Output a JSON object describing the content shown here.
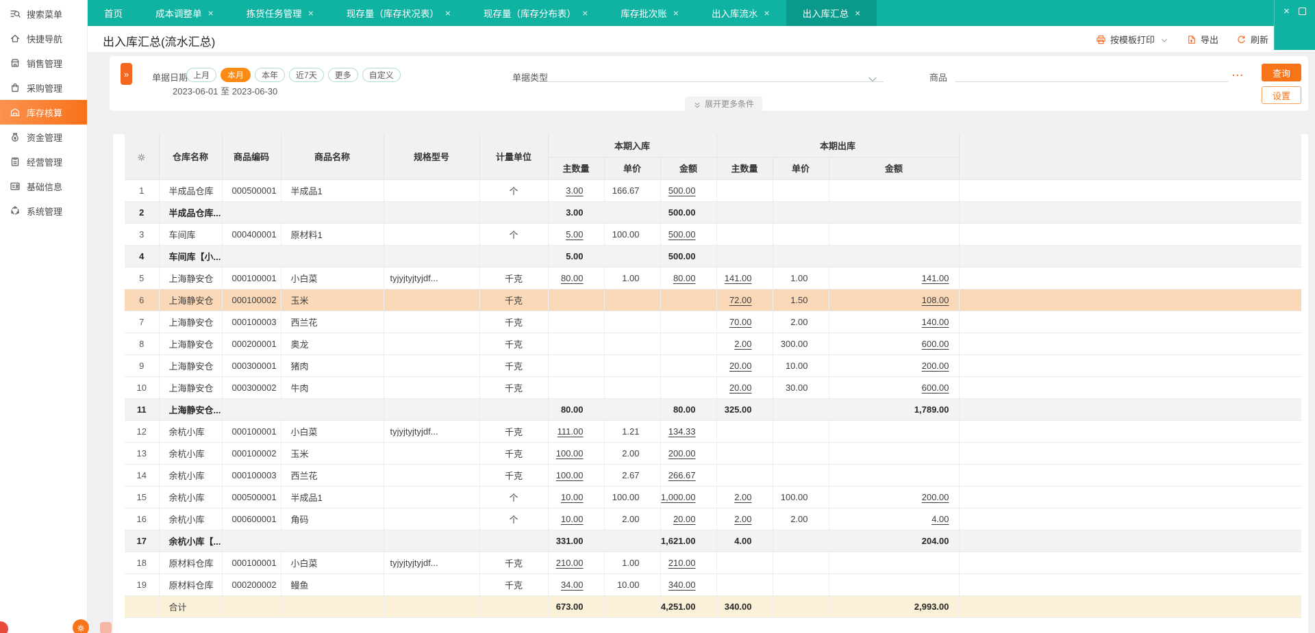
{
  "colors": {
    "teal": "#10b2a2",
    "teal_active_tab": "#0a9a8b",
    "orange": "#f97418",
    "pill_active": "#fa8c16",
    "row_selected": "#fad8b8",
    "row_subtotal": "#f2f3f5",
    "row_total": "#fbf0d8"
  },
  "sidebar": {
    "items": [
      {
        "id": "search-menu",
        "icon": "search-menu",
        "label": "搜索菜单",
        "active": false
      },
      {
        "id": "quick-nav",
        "icon": "home",
        "label": "快捷导航",
        "active": false
      },
      {
        "id": "sales",
        "icon": "shop",
        "label": "销售管理",
        "active": false
      },
      {
        "id": "purchase",
        "icon": "bag",
        "label": "采购管理",
        "active": false
      },
      {
        "id": "inventory-accounting",
        "icon": "warehouse",
        "label": "库存核算",
        "active": true
      },
      {
        "id": "funds",
        "icon": "money",
        "label": "资金管理",
        "active": false
      },
      {
        "id": "operations",
        "icon": "clipboard",
        "label": "经营管理",
        "active": false
      },
      {
        "id": "base-info",
        "icon": "id-card",
        "label": "基础信息",
        "active": false
      },
      {
        "id": "system",
        "icon": "system",
        "label": "系统管理",
        "active": false
      }
    ]
  },
  "tabbar": {
    "tabs": [
      {
        "label": "首页",
        "closable": false,
        "active": false
      },
      {
        "label": "成本调整单",
        "closable": true,
        "active": false
      },
      {
        "label": "拣货任务管理",
        "closable": true,
        "active": false
      },
      {
        "label": "现存量（库存状况表）",
        "closable": true,
        "active": false
      },
      {
        "label": "现存量（库存分布表）",
        "closable": true,
        "active": false
      },
      {
        "label": "库存批次账",
        "closable": true,
        "active": false
      },
      {
        "label": "出入库流水",
        "closable": true,
        "active": false
      },
      {
        "label": "出入库汇总",
        "closable": true,
        "active": true
      }
    ],
    "close_symbol": "×"
  },
  "page": {
    "title": "出入库汇总(流水汇总)",
    "toolbar": {
      "print": "按模板打印",
      "export": "导出",
      "refresh": "刷新"
    }
  },
  "filters": {
    "doc_date": {
      "label": "单据日期",
      "options": [
        "上月",
        "本月",
        "本年",
        "近7天",
        "更多",
        "自定义"
      ],
      "active": "本月",
      "range": "2023-06-01 至 2023-06-30"
    },
    "doc_type": {
      "label": "单据类型",
      "value": ""
    },
    "product": {
      "label": "商品",
      "value": "",
      "more": "..."
    },
    "search": "查询",
    "settings": "设置",
    "expand_more": "展开更多条件"
  },
  "table": {
    "columns": [
      "仓库名称",
      "商品编码",
      "商品名称",
      "规格型号",
      "计量单位"
    ],
    "group_in": "本期入库",
    "group_out": "本期出库",
    "sub_columns": [
      "主数量",
      "单价",
      "金额"
    ],
    "rows": [
      [
        "1",
        "半成品仓库",
        "000500001",
        "半成品1",
        "",
        "个",
        "3.00",
        "166.67",
        "500.00",
        "",
        "",
        "",
        "data"
      ],
      [
        "2",
        "半成品仓库...",
        "",
        "",
        "",
        "",
        "3.00",
        "",
        "500.00",
        "",
        "",
        "",
        "subtotal"
      ],
      [
        "3",
        "车间库",
        "000400001",
        "原材料1",
        "",
        "个",
        "5.00",
        "100.00",
        "500.00",
        "",
        "",
        "",
        "data"
      ],
      [
        "4",
        "车间库【小...",
        "",
        "",
        "",
        "",
        "5.00",
        "",
        "500.00",
        "",
        "",
        "",
        "subtotal"
      ],
      [
        "5",
        "上海静安仓",
        "000100001",
        "小白菜",
        "tyjyjtyjtyjdf...",
        "千克",
        "80.00",
        "1.00",
        "80.00",
        "141.00",
        "1.00",
        "141.00",
        "data"
      ],
      [
        "6",
        "上海静安仓",
        "000100002",
        "玉米",
        "",
        "千克",
        "",
        "",
        "",
        "72.00",
        "1.50",
        "108.00",
        "selected"
      ],
      [
        "7",
        "上海静安仓",
        "000100003",
        "西兰花",
        "",
        "千克",
        "",
        "",
        "",
        "70.00",
        "2.00",
        "140.00",
        "data"
      ],
      [
        "8",
        "上海静安仓",
        "000200001",
        "奥龙",
        "",
        "千克",
        "",
        "",
        "",
        "2.00",
        "300.00",
        "600.00",
        "data"
      ],
      [
        "9",
        "上海静安仓",
        "000300001",
        "猪肉",
        "",
        "千克",
        "",
        "",
        "",
        "20.00",
        "10.00",
        "200.00",
        "data"
      ],
      [
        "10",
        "上海静安仓",
        "000300002",
        "牛肉",
        "",
        "千克",
        "",
        "",
        "",
        "20.00",
        "30.00",
        "600.00",
        "data"
      ],
      [
        "11",
        "上海静安仓...",
        "",
        "",
        "",
        "",
        "80.00",
        "",
        "80.00",
        "325.00",
        "",
        "1,789.00",
        "subtotal"
      ],
      [
        "12",
        "余杭小库",
        "000100001",
        "小白菜",
        "tyjyjtyjtyjdf...",
        "千克",
        "111.00",
        "1.21",
        "134.33",
        "",
        "",
        "",
        "data"
      ],
      [
        "13",
        "余杭小库",
        "000100002",
        "玉米",
        "",
        "千克",
        "100.00",
        "2.00",
        "200.00",
        "",
        "",
        "",
        "data"
      ],
      [
        "14",
        "余杭小库",
        "000100003",
        "西兰花",
        "",
        "千克",
        "100.00",
        "2.67",
        "266.67",
        "",
        "",
        "",
        "data"
      ],
      [
        "15",
        "余杭小库",
        "000500001",
        "半成品1",
        "",
        "个",
        "10.00",
        "100.00",
        "1,000.00",
        "2.00",
        "100.00",
        "200.00",
        "data"
      ],
      [
        "16",
        "余杭小库",
        "000600001",
        "角码",
        "",
        "个",
        "10.00",
        "2.00",
        "20.00",
        "2.00",
        "2.00",
        "4.00",
        "data"
      ],
      [
        "17",
        "余杭小库【...",
        "",
        "",
        "",
        "",
        "331.00",
        "",
        "1,621.00",
        "4.00",
        "",
        "204.00",
        "subtotal"
      ],
      [
        "18",
        "原材料仓库",
        "000100001",
        "小白菜",
        "tyjyjtyjtyjdf...",
        "千克",
        "210.00",
        "1.00",
        "210.00",
        "",
        "",
        "",
        "data"
      ],
      [
        "19",
        "原材料仓库",
        "000200002",
        "鳗鱼",
        "",
        "千克",
        "34.00",
        "10.00",
        "340.00",
        "",
        "",
        "",
        "data"
      ],
      [
        "",
        "合计",
        "",
        "",
        "",
        "",
        "673.00",
        "",
        "4,251.00",
        "340.00",
        "",
        "2,993.00",
        "total"
      ]
    ]
  }
}
